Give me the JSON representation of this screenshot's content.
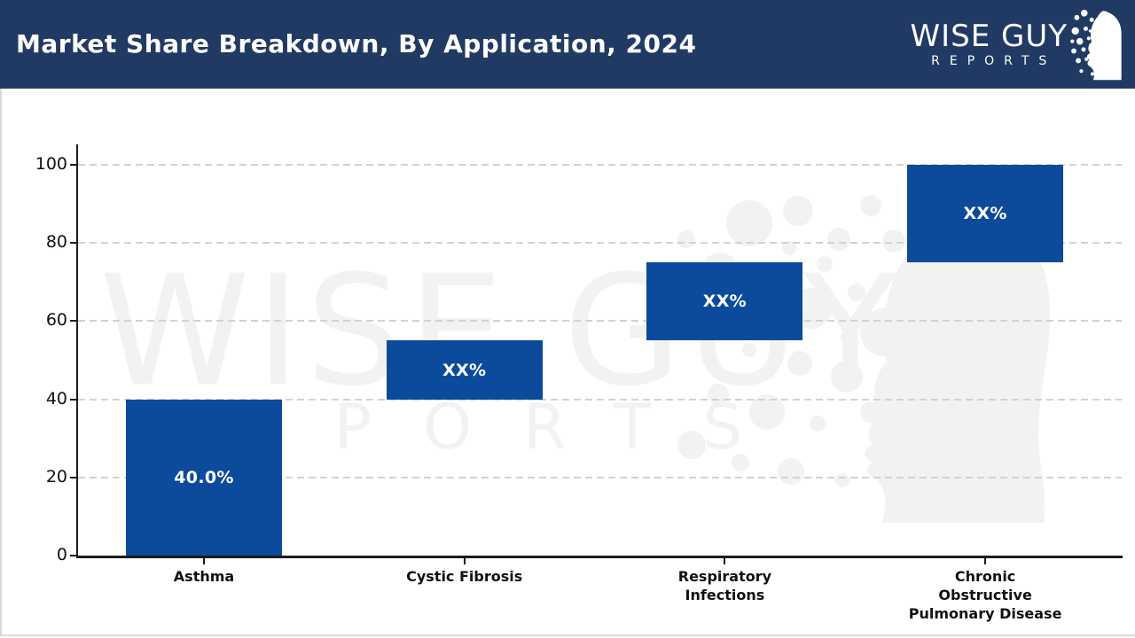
{
  "header": {
    "title": "Market Share Breakdown, By Application, 2024",
    "logo": {
      "line1": "WISE GUY",
      "line2": "REPORTS"
    }
  },
  "watermark": {
    "line1": "WISE GUY",
    "line2": "REPORTS"
  },
  "colors": {
    "header_bg": "#213a63",
    "bar_blue": "#0c4a9c",
    "gridline": "#d2d2d2",
    "axis": "#1c1c1c",
    "watermark_gray": "#f2f2f2"
  },
  "chart_data": {
    "type": "bar",
    "subtype": "floating-waterfall",
    "title": "Market Share Breakdown, By Application, 2024",
    "categories": [
      "Asthma",
      "Cystic Fibrosis",
      "Respiratory Infections",
      "Chronic Obstructive Pulmonary Disease"
    ],
    "category_lines": [
      [
        "Asthma"
      ],
      [
        "Cystic Fibrosis"
      ],
      [
        "Respiratory",
        "Infections"
      ],
      [
        "Chronic",
        "Obstructive",
        "Pulmonary Disease"
      ]
    ],
    "bars": [
      {
        "category": "Asthma",
        "start": 0,
        "end": 40,
        "label": "40.0%"
      },
      {
        "category": "Cystic Fibrosis",
        "start": 40,
        "end": 55,
        "label": "XX%"
      },
      {
        "category": "Respiratory Infections",
        "start": 55,
        "end": 75,
        "label": "XX%"
      },
      {
        "category": "Chronic Obstructive Pulmonary Disease",
        "start": 75,
        "end": 100,
        "label": "XX%"
      }
    ],
    "ylim": [
      0,
      100
    ],
    "yticks": [
      0,
      20,
      40,
      60,
      80,
      100
    ],
    "xlabel": "",
    "ylabel": "",
    "grid": "horizontal-dashed",
    "legend": "none",
    "bar_color": "#0c4a9c"
  }
}
